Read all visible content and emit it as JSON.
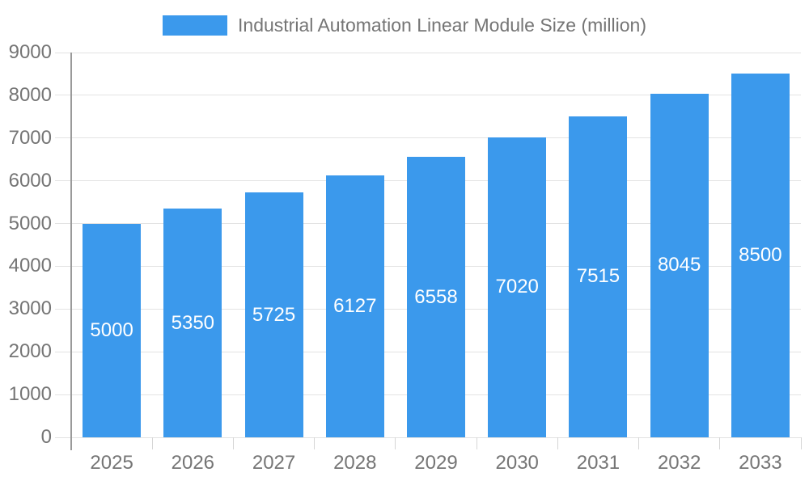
{
  "legend": {
    "label": "Industrial Automation Linear Module Size (million)",
    "swatch_color": "#3B99EC"
  },
  "chart_data": {
    "type": "bar",
    "title": "Industrial Automation Linear Module Size (million)",
    "categories": [
      "2025",
      "2026",
      "2027",
      "2028",
      "2029",
      "2030",
      "2031",
      "2032",
      "2033"
    ],
    "values": [
      5000,
      5350,
      5725,
      6127,
      6558,
      7020,
      7515,
      8045,
      8500
    ],
    "bar_labels": [
      "5000",
      "5350",
      "5725",
      "6127",
      "6558",
      "7020",
      "7515",
      "8045",
      "8500"
    ],
    "xlabel": "",
    "ylabel": "",
    "ylim": [
      0,
      9000
    ],
    "y_ticks": [
      0,
      1000,
      2000,
      3000,
      4000,
      5000,
      6000,
      7000,
      8000,
      9000
    ],
    "grid": true,
    "legend_position": "top",
    "colors": {
      "bar": "#3B99EC",
      "bar_value_text": "#FFFFFF",
      "axis_text": "#757575",
      "gridline": "#E3E3E3",
      "tick": "#D6D6D6",
      "axis_line": "#9A9A9A",
      "background": "#FFFFFF"
    }
  }
}
